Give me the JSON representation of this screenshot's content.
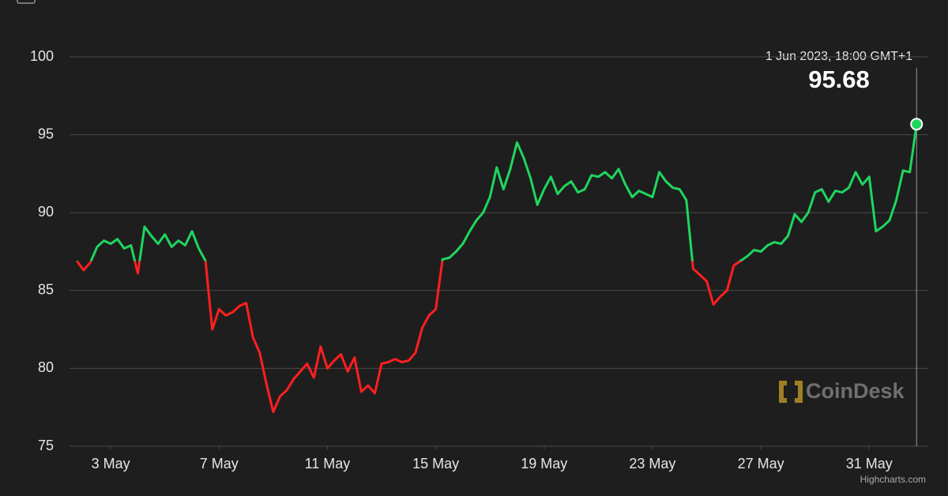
{
  "chart_data": {
    "type": "line",
    "annotation_label": "1 Jun 2023, 18:00 GMT+1",
    "annotation_value": "95.68",
    "watermark": "CoinDesk",
    "credits": "Highcharts.com",
    "threshold": 86.9,
    "above_color": "#1fd65f",
    "below_color": "#ff1f1f",
    "grid": true,
    "x": [
      1.75,
      2,
      2.25,
      2.5,
      2.75,
      3,
      3.25,
      3.5,
      3.75,
      4,
      4.25,
      4.5,
      4.75,
      5,
      5.25,
      5.5,
      5.75,
      6,
      6.25,
      6.5,
      6.75,
      7,
      7.25,
      7.5,
      7.75,
      8,
      8.25,
      8.5,
      8.75,
      9,
      9.25,
      9.5,
      9.75,
      10,
      10.25,
      10.5,
      10.75,
      11,
      11.25,
      11.5,
      11.75,
      12,
      12.25,
      12.5,
      12.75,
      13,
      13.25,
      13.5,
      13.75,
      14,
      14.25,
      14.5,
      14.75,
      15,
      15.25,
      15.5,
      15.75,
      16,
      16.25,
      16.5,
      16.75,
      17,
      17.25,
      17.5,
      17.75,
      18,
      18.25,
      18.5,
      18.75,
      19,
      19.25,
      19.5,
      19.75,
      20,
      20.25,
      20.5,
      20.75,
      21,
      21.25,
      21.5,
      21.75,
      22,
      22.25,
      22.5,
      22.75,
      23,
      23.25,
      23.5,
      23.75,
      24,
      24.25,
      24.5,
      24.75,
      25,
      25.25,
      25.5,
      25.75,
      26,
      26.25,
      26.5,
      26.75,
      27,
      27.25,
      27.5,
      27.75,
      28,
      28.25,
      28.5,
      28.75,
      29,
      29.25,
      29.5,
      29.75,
      30,
      30.25,
      30.5,
      30.75,
      31,
      31.25,
      31.5,
      31.75,
      32,
      32.25,
      32.5,
      32.75
    ],
    "values": [
      86.9,
      86.3,
      86.8,
      87.8,
      88.2,
      88.0,
      88.3,
      87.7,
      87.9,
      86.1,
      89.1,
      88.5,
      88.0,
      88.6,
      87.8,
      88.2,
      87.9,
      88.8,
      87.7,
      86.9,
      82.5,
      83.8,
      83.4,
      83.6,
      84.0,
      84.2,
      82.0,
      81.0,
      79.0,
      77.2,
      78.2,
      78.6,
      79.3,
      79.8,
      80.3,
      79.4,
      81.4,
      80.0,
      80.5,
      80.9,
      79.8,
      80.7,
      78.5,
      78.9,
      78.4,
      80.3,
      80.4,
      80.6,
      80.4,
      80.5,
      81.0,
      82.6,
      83.4,
      83.8,
      87.0,
      87.1,
      87.5,
      88.0,
      88.8,
      89.5,
      90.0,
      91.0,
      92.9,
      91.5,
      92.8,
      94.5,
      93.5,
      92.2,
      90.5,
      91.5,
      92.3,
      91.2,
      91.7,
      92.0,
      91.3,
      91.5,
      92.4,
      92.3,
      92.6,
      92.2,
      92.8,
      91.8,
      91.0,
      91.4,
      91.2,
      91.0,
      92.6,
      92.0,
      91.6,
      91.5,
      90.8,
      86.4,
      86.0,
      85.6,
      84.1,
      84.6,
      85.0,
      86.6,
      86.9,
      87.2,
      87.6,
      87.5,
      87.9,
      88.1,
      88.0,
      88.5,
      89.9,
      89.4,
      90.0,
      91.3,
      91.5,
      90.7,
      91.4,
      91.3,
      91.6,
      92.6,
      91.8,
      92.3,
      88.8,
      89.1,
      89.5,
      90.8,
      92.7,
      92.6,
      95.68
    ],
    "xlim": [
      1.48,
      33.18
    ],
    "xticks": [
      {
        "value": 3,
        "label": "3 May"
      },
      {
        "value": 7,
        "label": "7 May"
      },
      {
        "value": 11,
        "label": "11 May"
      },
      {
        "value": 15,
        "label": "15 May"
      },
      {
        "value": 19,
        "label": "19 May"
      },
      {
        "value": 23,
        "label": "23 May"
      },
      {
        "value": 27,
        "label": "27 May"
      },
      {
        "value": 31,
        "label": "31 May"
      }
    ],
    "ylim": [
      75,
      100
    ],
    "yticks": [
      75,
      80,
      85,
      90,
      95,
      100
    ]
  }
}
